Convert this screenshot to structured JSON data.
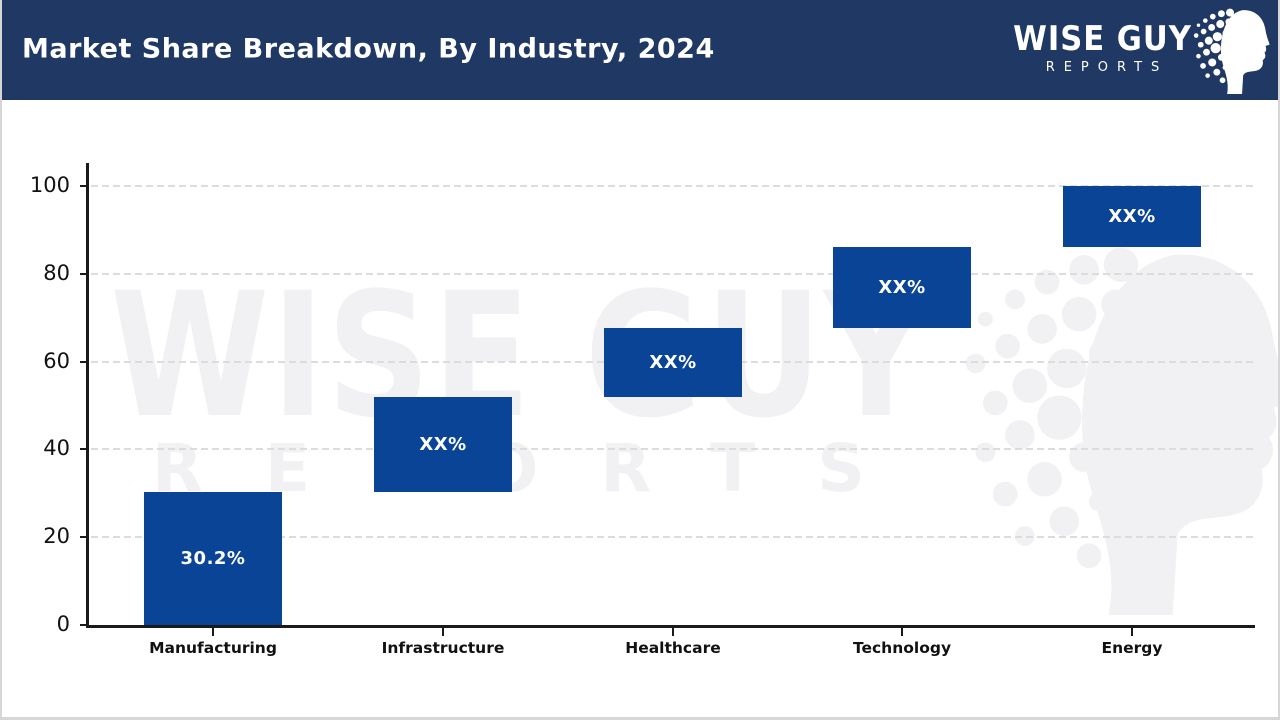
{
  "header": {
    "title": "Market Share Breakdown, By Industry, 2024",
    "logo": {
      "line1": "WISE GUY",
      "line2": "REPORTS"
    }
  },
  "watermark": {
    "line1": "WISE GUY",
    "line2": "REPORTS"
  },
  "chart_data": {
    "type": "bar",
    "subtype": "waterfall",
    "title": "Market Share Breakdown, By Industry, 2024",
    "xlabel": "",
    "ylabel": "",
    "categories": [
      "Manufacturing",
      "Infrastructure",
      "Healthcare",
      "Technology",
      "Energy"
    ],
    "segments": [
      {
        "category": "Manufacturing",
        "start": 0,
        "end": 30.2,
        "value_shown": "30.2%"
      },
      {
        "category": "Infrastructure",
        "start": 30.2,
        "end": 51.9,
        "value_shown": "XX%"
      },
      {
        "category": "Healthcare",
        "start": 51.9,
        "end": 67.7,
        "value_shown": "XX%"
      },
      {
        "category": "Technology",
        "start": 67.7,
        "end": 86.2,
        "value_shown": "XX%"
      },
      {
        "category": "Energy",
        "start": 86.2,
        "end": 100,
        "value_shown": "XX%"
      }
    ],
    "yticks": [
      0,
      20,
      40,
      60,
      80,
      100
    ],
    "ylim": [
      0,
      104
    ],
    "grid": "horizontal-dashed",
    "legend": "none",
    "bar_color": "#0a4496",
    "bar_label_color": "#ffffff",
    "axis_color": "#1a1a1a",
    "grid_color": "#dcdcdc",
    "header_bg_color": "#203864",
    "watermark_color": "#f1f1f3"
  }
}
